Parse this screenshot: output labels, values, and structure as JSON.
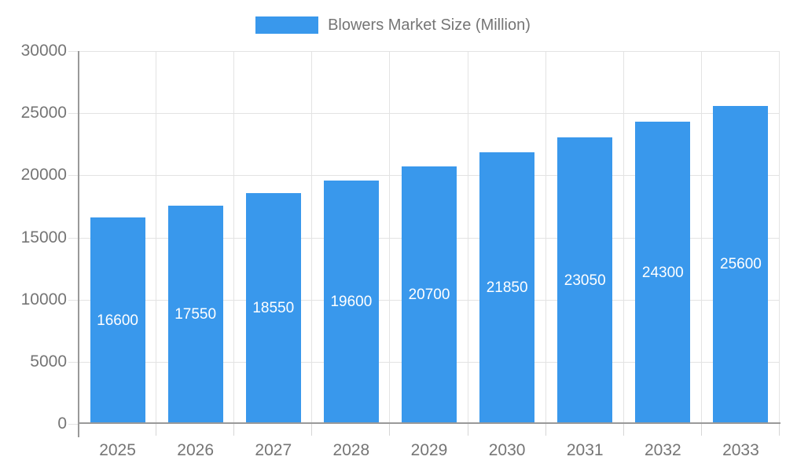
{
  "chart_data": {
    "type": "bar",
    "title": "Blowers Market Size (Million)",
    "categories": [
      "2025",
      "2026",
      "2027",
      "2028",
      "2029",
      "2030",
      "2031",
      "2032",
      "2033"
    ],
    "values": [
      16600,
      17550,
      18550,
      19600,
      20700,
      21850,
      23050,
      24300,
      25600
    ],
    "series_name": "Blowers Market Size (Million)",
    "xlabel": "",
    "ylabel": "",
    "ylim": [
      0,
      30000
    ],
    "yticks": [
      0,
      5000,
      10000,
      15000,
      20000,
      25000,
      30000
    ],
    "grid": "on",
    "legend_position": "top-center",
    "value_labels": "inside-center"
  },
  "colors": {
    "bar": "#3998EC",
    "axis_line": "#999999",
    "grid_line": "#e3e3e3",
    "tick": "#d6d6d6",
    "axis_label": "#757575",
    "value_label": "#ffffff",
    "background": "#ffffff"
  }
}
